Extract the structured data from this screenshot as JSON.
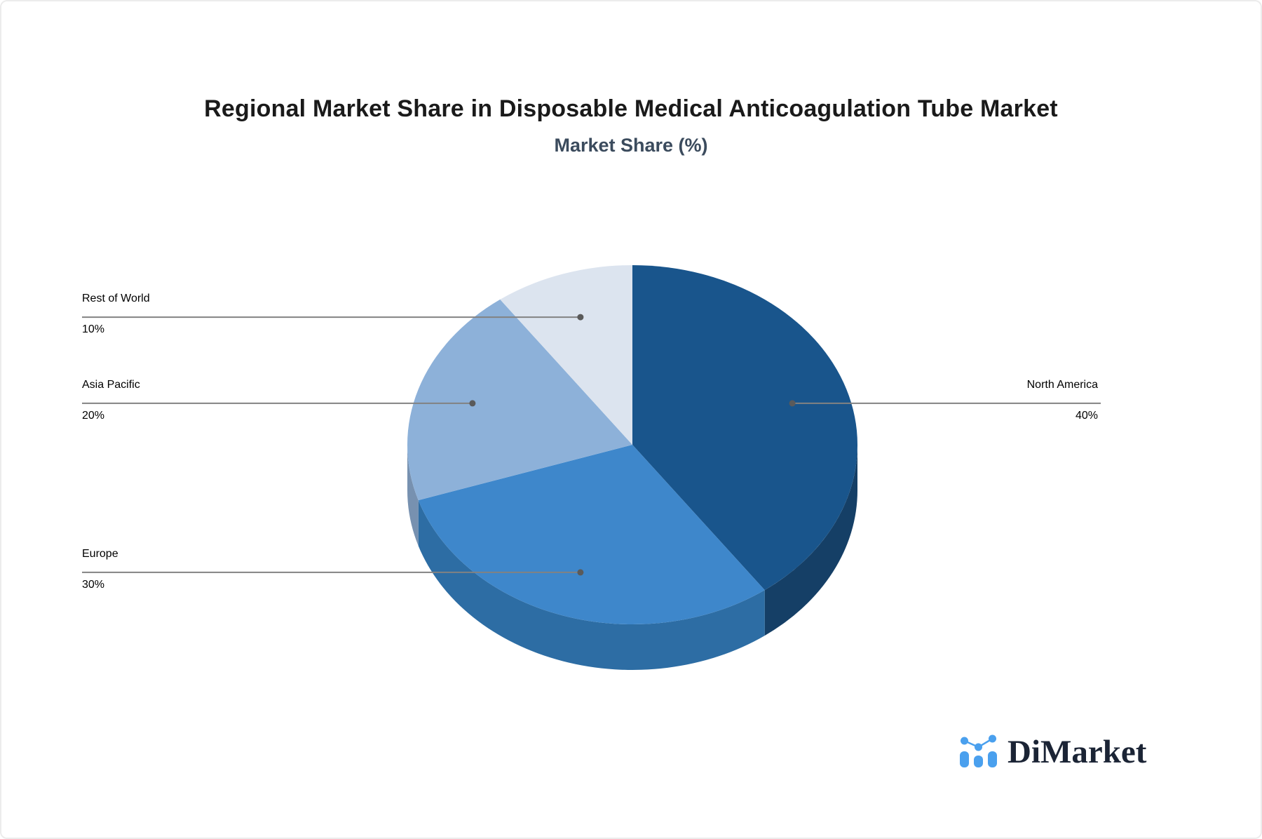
{
  "title": "Regional Market Share in Disposable Medical Anticoagulation Tube Market",
  "subtitle": "Market Share (%)",
  "logo": {
    "text": "DiMarket",
    "icon": "mini-bar-chart-icon",
    "icon_color": "#4AA0EE",
    "text_color": "#1B2435"
  },
  "chart_data": {
    "type": "pie",
    "title": "Regional Market Share in Disposable Medical Anticoagulation Tube Market",
    "subtitle": "Market Share (%)",
    "unit": "%",
    "style": "3d",
    "direction": "clockwise",
    "start_angle_deg": 0,
    "legend_position": "none",
    "connector_color": "#828282",
    "connector_dot_color": "#5a5a5a",
    "label_color": "#2E2E2E",
    "value_color": "#9B9B9B",
    "slices": [
      {
        "label": "North America",
        "value": 40,
        "value_label": "40%",
        "color": "#19558C",
        "side_color": "#153F66",
        "label_side": "right"
      },
      {
        "label": "Europe",
        "value": 30,
        "value_label": "30%",
        "color": "#3E87CB",
        "side_color": "#2D6DA4",
        "label_side": "left"
      },
      {
        "label": "Asia Pacific",
        "value": 20,
        "value_label": "20%",
        "color": "#8DB1D9",
        "side_color": "#7791B0",
        "label_side": "left"
      },
      {
        "label": "Rest of World",
        "value": 10,
        "value_label": "10%",
        "color": "#DCE4EF",
        "side_color": "#B9C6DA",
        "label_side": "left"
      }
    ]
  }
}
